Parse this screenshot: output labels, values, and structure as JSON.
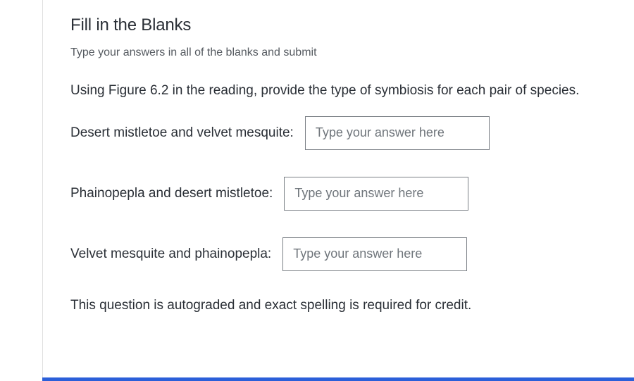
{
  "header": {
    "title": "Fill in the Blanks",
    "instruction": "Type your answers in all of the blanks and submit"
  },
  "question": {
    "prompt": "Using Figure 6.2 in the reading, provide the type of symbiosis for each pair of species.",
    "footer": "This question is autograded and exact spelling is required for credit.",
    "blanks": [
      {
        "label": "Desert mistletoe and velvet mesquite:",
        "placeholder": "Type your answer here",
        "value": ""
      },
      {
        "label": "Phainopepla and desert mistletoe:",
        "placeholder": "Type your answer here",
        "value": ""
      },
      {
        "label": "Velvet mesquite and phainopepla:",
        "placeholder": "Type your answer here",
        "value": ""
      }
    ]
  },
  "style": {
    "accent_color": "#2b5fd9",
    "border_color": "#7a7f85",
    "text_color": "#2a2f36",
    "muted_text_color": "#555a60",
    "placeholder_color": "#6f757b",
    "background_color": "#ffffff",
    "title_fontsize": 24,
    "body_fontsize": 19,
    "instruction_fontsize": 16
  }
}
